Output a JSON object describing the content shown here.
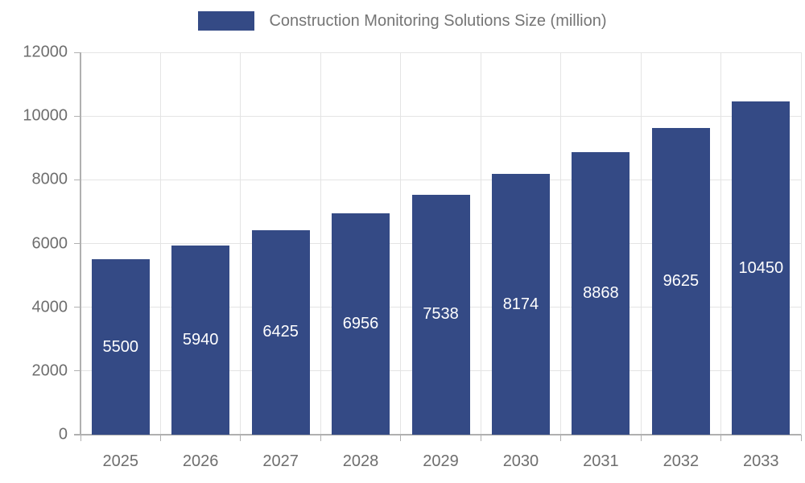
{
  "chart_data": {
    "type": "bar",
    "title": "Construction Monitoring Solutions Size (million)",
    "categories": [
      "2025",
      "2026",
      "2027",
      "2028",
      "2029",
      "2030",
      "2031",
      "2032",
      "2033"
    ],
    "values": [
      5500,
      5940,
      6425,
      6956,
      7538,
      8174,
      8868,
      9625,
      10450
    ],
    "value_labels": [
      "5500",
      "5940",
      "6425",
      "6956",
      "7538",
      "8174",
      "8868",
      "9625",
      "10450"
    ],
    "xlabel": "",
    "ylabel": "",
    "ylim": [
      0,
      12000
    ],
    "y_ticks": [
      0,
      2000,
      4000,
      6000,
      8000,
      10000,
      12000
    ],
    "y_tick_labels": [
      "0",
      "2000",
      "4000",
      "6000",
      "8000",
      "10000",
      "12000"
    ],
    "grid": "horizontal and vertical light gridlines",
    "legend_position": "top-center",
    "value_label_position": "inside-center",
    "colors": {
      "bar": "#344a85",
      "value_label": "#ffffff",
      "axis_text": "#6e6e6e",
      "legend_text": "#757575",
      "gridline": "#e4e4e4",
      "axis_line": "#b0b0b0",
      "background": "#ffffff"
    }
  }
}
